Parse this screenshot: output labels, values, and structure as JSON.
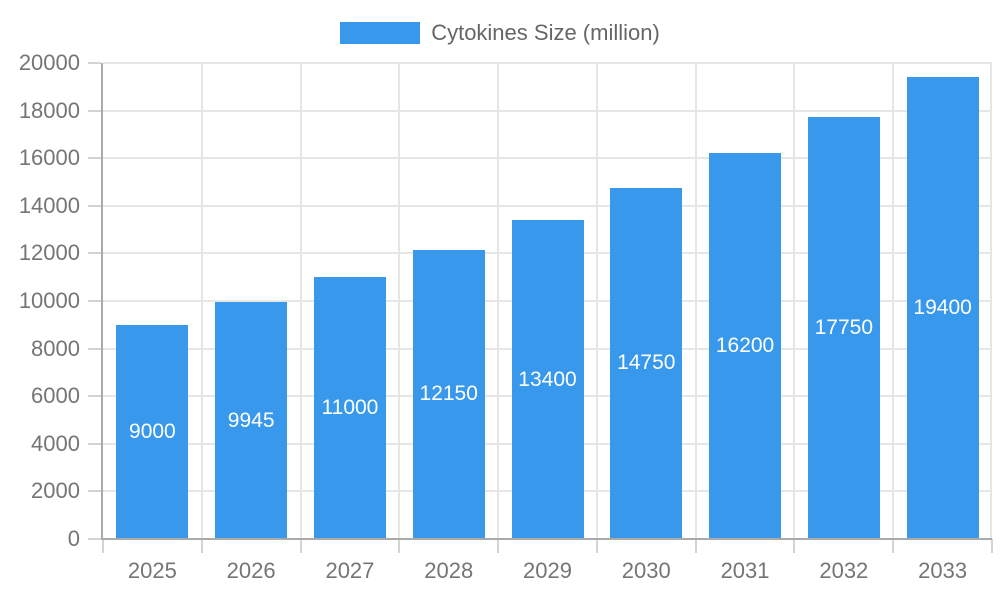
{
  "legend": {
    "label": "Cytokines Size (million)"
  },
  "chart_data": {
    "type": "bar",
    "title": "",
    "series_name": "Cytokines Size (million)",
    "categories": [
      "2025",
      "2026",
      "2027",
      "2028",
      "2029",
      "2030",
      "2031",
      "2032",
      "2033"
    ],
    "values": [
      9000,
      9945,
      11000,
      12150,
      13400,
      14750,
      16200,
      17750,
      19400
    ],
    "bar_labels": [
      "9000",
      "9945",
      "11000",
      "12150",
      "13400",
      "14750",
      "16200",
      "17750",
      "19400"
    ],
    "xlabel": "",
    "ylabel": "",
    "ylim": [
      0,
      20000
    ],
    "ytick_step": 2000,
    "yticks": [
      "0",
      "2000",
      "4000",
      "6000",
      "8000",
      "10000",
      "12000",
      "14000",
      "16000",
      "18000",
      "20000"
    ],
    "grid": true,
    "legend_position": "top",
    "bar_label_position": "center"
  },
  "colors": {
    "bar": "#3898ec",
    "grid": "#e6e6e6",
    "axis": "#aaaaaa",
    "tick": "#d4d4d4",
    "axis_label": "#757575",
    "legend_text": "#666666",
    "bar_label": "#ffffff",
    "background": "#ffffff"
  }
}
